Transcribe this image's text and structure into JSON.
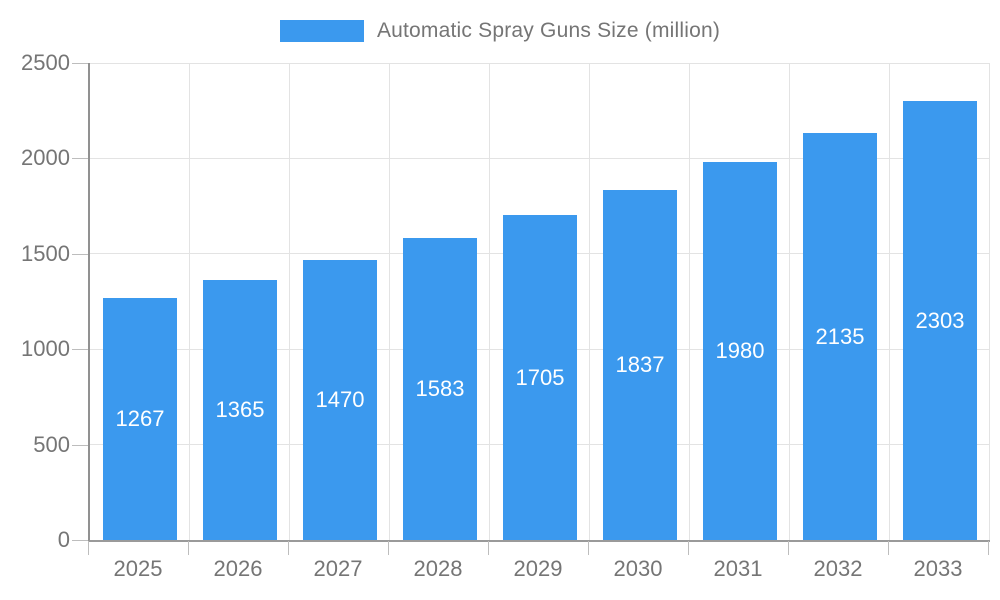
{
  "chart_data": {
    "type": "bar",
    "title": "Automatic Spray Guns Size (million)",
    "legend": "Automatic Spray Guns Size (million)",
    "legend_position": "top-center",
    "categories": [
      "2025",
      "2026",
      "2027",
      "2028",
      "2029",
      "2030",
      "2031",
      "2032",
      "2033"
    ],
    "series": [
      {
        "name": "Automatic Spray Guns Size (million)",
        "values": [
          1267,
          1365,
          1470,
          1583,
          1705,
          1837,
          1980,
          2135,
          2303
        ]
      }
    ],
    "value_labels_shown": true,
    "xlabel": "",
    "ylabel": "",
    "ylim": [
      0,
      2500
    ],
    "yticks": [
      0,
      500,
      1000,
      1500,
      2000,
      2500
    ],
    "grid": true,
    "colors": {
      "bar": "#3b99ee",
      "value_label": "#ffffff",
      "axis_line": "#999999",
      "gridline": "#e3e3e3",
      "tick_label": "#757575",
      "legend_text": "#757575"
    }
  }
}
